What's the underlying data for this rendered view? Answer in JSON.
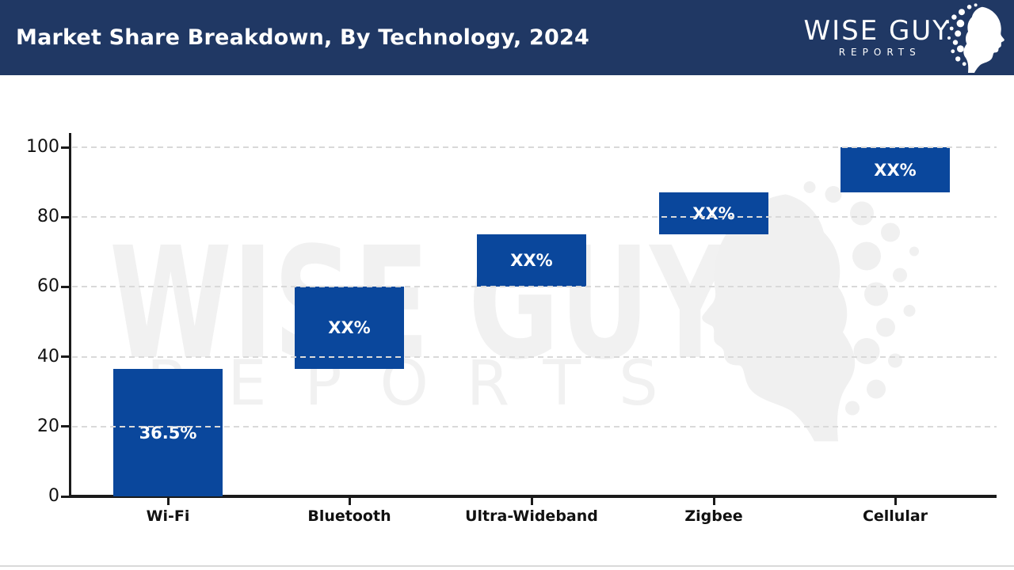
{
  "header": {
    "title": "Market Share Breakdown, By Technology, 2024",
    "logo": {
      "wordmark": "WISE GUY",
      "tagline": "REPORTS"
    }
  },
  "watermark": {
    "wordmark": "WISE GUY",
    "tagline": "REPORTS"
  },
  "colors": {
    "header_bg": "#203864",
    "bar": "#0a479c",
    "bar_label": "#ffffff",
    "grid": "#d9d9d9",
    "axis": "#1a1a1a",
    "watermark": "#f1f1f1"
  },
  "chart_data": {
    "type": "bar",
    "subtype": "waterfall",
    "title": "Market Share Breakdown, By Technology, 2024",
    "categories": [
      "Wi-Fi",
      "Bluetooth",
      "Ultra-Wideband",
      "Zigbee",
      "Cellular"
    ],
    "segments": [
      {
        "category": "Wi-Fi",
        "start": 0,
        "end": 36.5,
        "label": "36.5%"
      },
      {
        "category": "Bluetooth",
        "start": 36.5,
        "end": 60,
        "label": "XX%"
      },
      {
        "category": "Ultra-Wideband",
        "start": 60,
        "end": 75,
        "label": "XX%"
      },
      {
        "category": "Zigbee",
        "start": 75,
        "end": 87,
        "label": "XX%"
      },
      {
        "category": "Cellular",
        "start": 87,
        "end": 100,
        "label": "XX%"
      }
    ],
    "xlabel": "",
    "ylabel": "",
    "ylim": [
      0,
      100
    ],
    "yticks": [
      0,
      20,
      40,
      60,
      80,
      100
    ],
    "grid": "horizontal-dashed",
    "legend": "none",
    "bar_value_display": "centered-inside-bar"
  }
}
